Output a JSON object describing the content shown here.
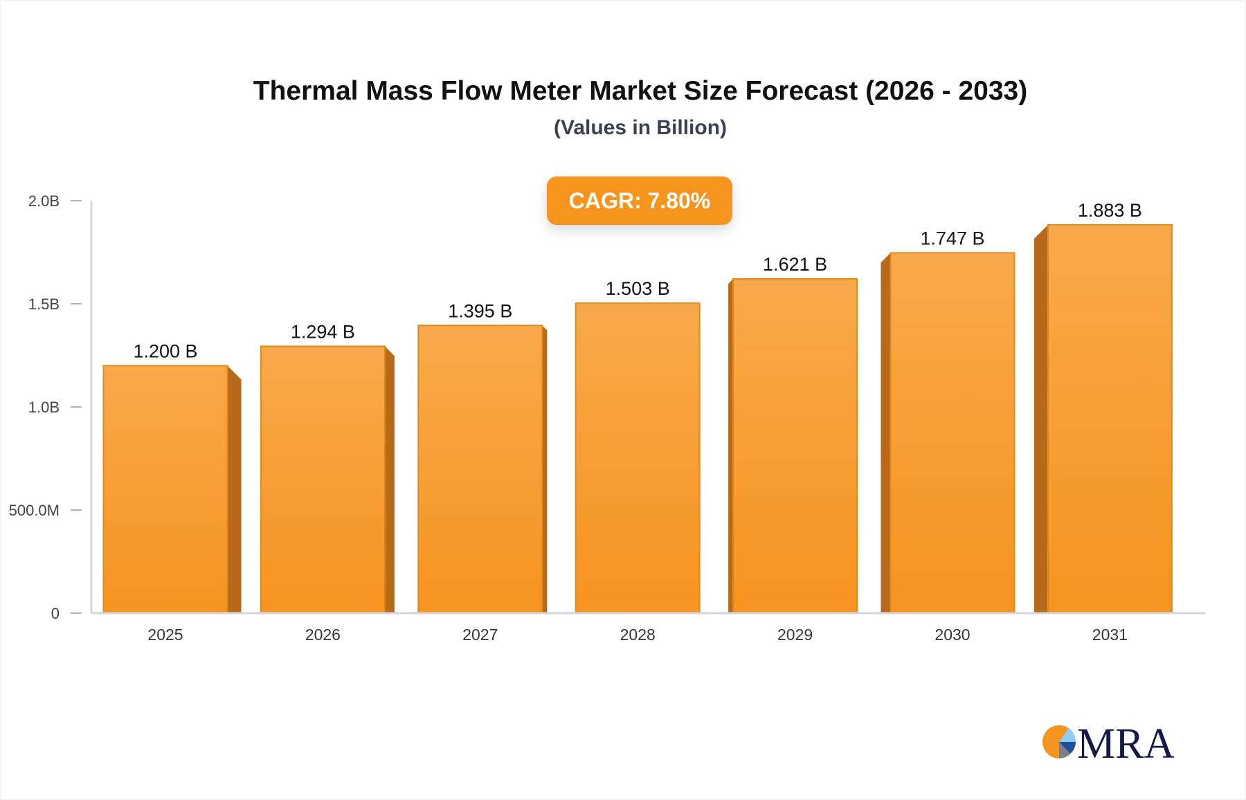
{
  "chart_data": {
    "type": "bar",
    "title": "Thermal Mass Flow Meter Market Size Forecast (2026 - 2033)",
    "subtitle": "(Values in Billion)",
    "annotation": "CAGR: 7.80%",
    "categories": [
      "2025",
      "2026",
      "2027",
      "2028",
      "2029",
      "2030",
      "2031"
    ],
    "values": [
      1.2,
      1.294,
      1.395,
      1.503,
      1.621,
      1.747,
      1.883
    ],
    "data_labels": [
      "1.200 B",
      "1.294 B",
      "1.395 B",
      "1.503 B",
      "1.621 B",
      "1.747 B",
      "1.883 B"
    ],
    "ylim": [
      0,
      2.0
    ],
    "yticks": [
      {
        "value": 0,
        "label": "0"
      },
      {
        "value": 0.5,
        "label": "500.0M"
      },
      {
        "value": 1.0,
        "label": "1.0B"
      },
      {
        "value": 1.5,
        "label": "1.5B"
      },
      {
        "value": 2.0,
        "label": "2.0B"
      }
    ],
    "grid": false,
    "bar_color": "#f7941d",
    "bar_side_color": "#b8691a"
  },
  "logo": {
    "text": "MRA"
  }
}
